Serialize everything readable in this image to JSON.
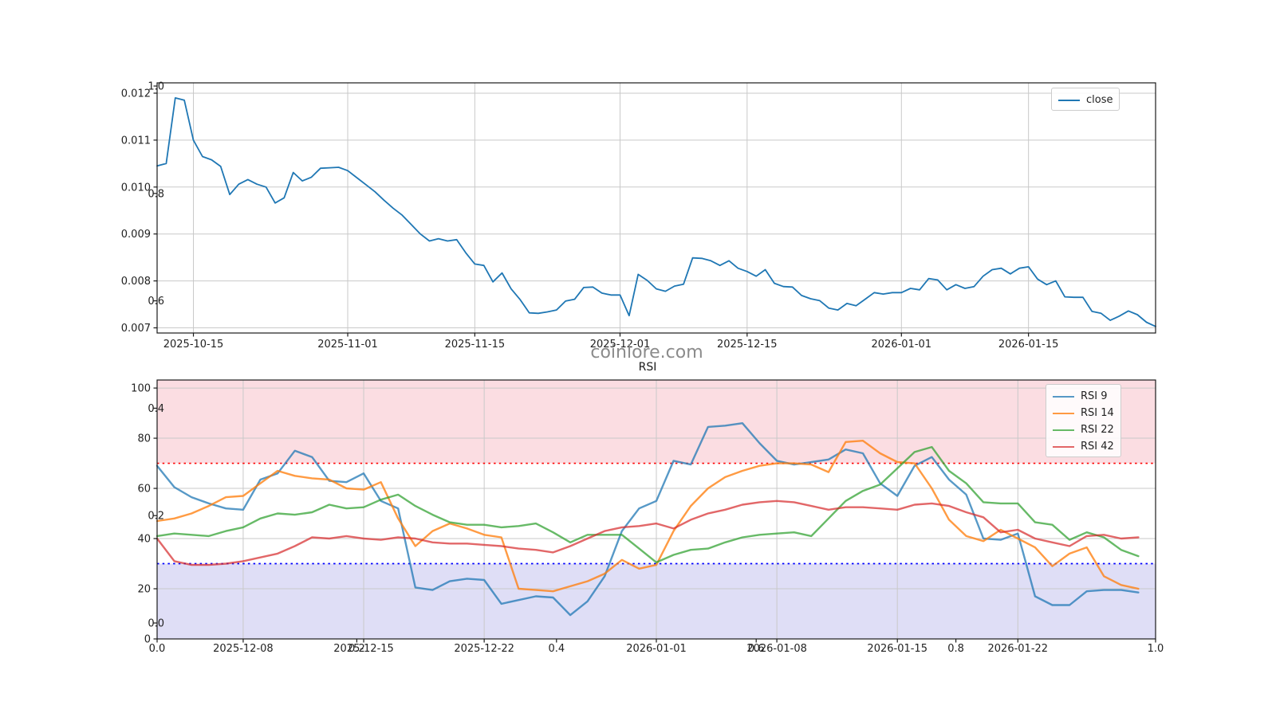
{
  "watermark": "coinlore.com",
  "price_chart": {
    "y_ticks": [
      "0.012",
      "0.011",
      "0.010",
      "0.009",
      "0.008",
      "0.007"
    ],
    "x_ticks": [
      "2025-10-15",
      "2025-11-01",
      "2025-11-15",
      "2025-12-01",
      "2025-12-15",
      "2026-01-01",
      "2026-01-15"
    ]
  },
  "rsi_chart": {
    "title": "RSI",
    "y_ticks": [
      "100",
      "80",
      "60",
      "40",
      "20",
      "0"
    ],
    "x_ticks": [
      "2025-12-08",
      "2025-12-15",
      "2025-12-22",
      "2026-01-01",
      "2026-01-08",
      "2026-01-15",
      "2026-01-22"
    ]
  },
  "overlay_axis": {
    "y_ticks": [
      "1.0",
      "0.8",
      "0.6",
      "0.4",
      "0.2",
      "0.0"
    ],
    "x_ticks": [
      "0.0",
      "0.2",
      "0.4",
      "0.6",
      "0.8",
      "1.0"
    ]
  },
  "colors": {
    "close": "#1f77b4",
    "rsi9": "rgba(31,119,180,0.75)",
    "rsi14": "rgba(255,127,14,0.78)",
    "rsi22": "rgba(44,160,44,0.72)",
    "rsi42": "rgba(214,39,40,0.70)",
    "overbought_band": "#fbdde2",
    "oversold_band": "#dfdef6",
    "overbought_line": "#ff0000",
    "oversold_line": "#0000ff",
    "grid": "#c9c9c9",
    "spine": "#1a1a1a",
    "text": "#222222"
  },
  "chart_data": [
    {
      "type": "line",
      "title": "",
      "xlabel": "",
      "ylabel": "",
      "ylim": [
        0.007,
        0.012
      ],
      "grid": true,
      "legend_position": "upper right",
      "x": {
        "start": "2025-10-11",
        "interval": "daily",
        "points": 111
      },
      "x_tick_labels": [
        "2025-10-15",
        "2025-11-01",
        "2025-11-15",
        "2025-12-01",
        "2025-12-15",
        "2026-01-01",
        "2026-01-15"
      ],
      "x_tick_indices": [
        4,
        21,
        35,
        51,
        65,
        82,
        96
      ],
      "y_ticks": [
        0.012,
        0.011,
        0.01,
        0.009,
        0.008,
        0.007
      ],
      "series": [
        {
          "name": "close",
          "color": "#1f77b4",
          "values": [
            0.01045,
            0.0105,
            0.0119,
            0.01185,
            0.011,
            0.01065,
            0.01058,
            0.01044,
            0.00984,
            0.01006,
            0.01016,
            0.01006,
            0.01,
            0.00966,
            0.00977,
            0.01031,
            0.01013,
            0.01021,
            0.0104,
            0.01041,
            0.01042,
            0.01035,
            0.0102,
            0.01005,
            0.0099,
            0.00972,
            0.00955,
            0.0094,
            0.0092,
            0.009,
            0.00885,
            0.0089,
            0.00885,
            0.00888,
            0.0086,
            0.00836,
            0.00833,
            0.00798,
            0.00817,
            0.00783,
            0.0076,
            0.00732,
            0.00731,
            0.00734,
            0.00738,
            0.00757,
            0.00761,
            0.00786,
            0.00787,
            0.00774,
            0.0077,
            0.0077,
            0.00726,
            0.00814,
            0.00801,
            0.00783,
            0.00778,
            0.00789,
            0.00793,
            0.00849,
            0.00848,
            0.00843,
            0.00833,
            0.00843,
            0.00827,
            0.0082,
            0.0081,
            0.00824,
            0.00795,
            0.00788,
            0.00787,
            0.00769,
            0.00762,
            0.00758,
            0.00742,
            0.00738,
            0.00752,
            0.00747,
            0.00761,
            0.00775,
            0.00772,
            0.00775,
            0.00775,
            0.00784,
            0.00781,
            0.00805,
            0.00802,
            0.00781,
            0.00792,
            0.00784,
            0.00788,
            0.0081,
            0.00824,
            0.00827,
            0.00815,
            0.00827,
            0.0083,
            0.00804,
            0.00792,
            0.008,
            0.00766,
            0.00765,
            0.00765,
            0.00735,
            0.00731,
            0.00716,
            0.00725,
            0.00736,
            0.00728,
            0.00712,
            0.00703
          ]
        }
      ]
    },
    {
      "type": "line",
      "title": "RSI",
      "xlabel": "",
      "ylabel": "",
      "ylim": [
        0,
        100
      ],
      "grid": true,
      "legend_position": "upper right",
      "overbought_level": 70,
      "oversold_level": 30,
      "bands": [
        {
          "from": 70,
          "to": 100,
          "color": "#fbdde2"
        },
        {
          "from": 0,
          "to": 30,
          "color": "#dfdef6"
        }
      ],
      "threshold_lines": [
        {
          "value": 70,
          "style": "dotted",
          "color": "#ff0000"
        },
        {
          "value": 30,
          "style": "dotted",
          "color": "#0000ff"
        }
      ],
      "x": {
        "start": "2025-12-03",
        "interval": "daily",
        "points": 58
      },
      "x_tick_labels": [
        "2025-12-08",
        "2025-12-15",
        "2025-12-22",
        "2026-01-01",
        "2026-01-08",
        "2026-01-15",
        "2026-01-22"
      ],
      "x_tick_indices": [
        5,
        12,
        19,
        29,
        36,
        43,
        50
      ],
      "y_ticks": [
        100,
        80,
        60,
        40,
        20,
        0
      ],
      "series": [
        {
          "name": "RSI 9",
          "color": "rgba(31,119,180,0.75)",
          "values": [
            69,
            60.5,
            56.5,
            54,
            52,
            51.5,
            63.5,
            66,
            75,
            72.5,
            63,
            62.5,
            66,
            55,
            52,
            20.5,
            19.5,
            23,
            24,
            23.5,
            14,
            15.5,
            17,
            16.5,
            9.5,
            15,
            25,
            43,
            52,
            55,
            71,
            69.5,
            84.5,
            85,
            86,
            78,
            71,
            69.5,
            70.5,
            71.5,
            75.5,
            74,
            62,
            57,
            69,
            72.5,
            63.5,
            57.5,
            40,
            39.5,
            42,
            17,
            13.5,
            13.5,
            19,
            19.5,
            19.5,
            18.5
          ]
        },
        {
          "name": "RSI 14",
          "color": "rgba(255,127,14,0.78)",
          "values": [
            47,
            48,
            50,
            53,
            56.5,
            57,
            62,
            67,
            65,
            64,
            63.5,
            60,
            59.5,
            62.5,
            48,
            37,
            43,
            46,
            44,
            41.5,
            40.5,
            20,
            19.5,
            19,
            21,
            23,
            26,
            31.5,
            28,
            29.5,
            43,
            53,
            60,
            64.5,
            67,
            69,
            70,
            70,
            69.5,
            66.5,
            78.5,
            79,
            74,
            70.5,
            70,
            60,
            47.5,
            41,
            39,
            43.5,
            40,
            36.5,
            29,
            34,
            36.5,
            25,
            21.5,
            20
          ]
        },
        {
          "name": "RSI 22",
          "color": "rgba(44,160,44,0.72)",
          "values": [
            41,
            42,
            41.5,
            41,
            43,
            44.5,
            48,
            50,
            49.5,
            50.5,
            53.5,
            52,
            52.5,
            55.5,
            57.5,
            53,
            49.5,
            46.5,
            45.5,
            45.5,
            44.5,
            45,
            46,
            42.5,
            38.5,
            41.5,
            41.5,
            41.5,
            36,
            30.5,
            33.5,
            35.5,
            36,
            38.5,
            40.5,
            41.5,
            42,
            42.5,
            41,
            48,
            55,
            59,
            61.5,
            68,
            74.5,
            76.5,
            67,
            62,
            54.5,
            54,
            54,
            46.5,
            45.5,
            39.5,
            42.5,
            40.5,
            35.5,
            33
          ]
        },
        {
          "name": "RSI 42",
          "color": "rgba(214,39,40,0.70)",
          "values": [
            40,
            31,
            29.5,
            29.5,
            30,
            31,
            32.5,
            34,
            37,
            40.5,
            40,
            41,
            40,
            39.5,
            40.5,
            40,
            38.5,
            38,
            38,
            37.5,
            37,
            36,
            35.5,
            34.5,
            37,
            40,
            43,
            44.5,
            45,
            46,
            44,
            47.5,
            50,
            51.5,
            53.5,
            54.5,
            55,
            54.5,
            53,
            51.5,
            52.5,
            52.5,
            52,
            51.5,
            53.5,
            54,
            53,
            50.5,
            48.5,
            42.5,
            43.5,
            40,
            38.5,
            37,
            41,
            41.5,
            40,
            40.5
          ]
        }
      ]
    }
  ]
}
